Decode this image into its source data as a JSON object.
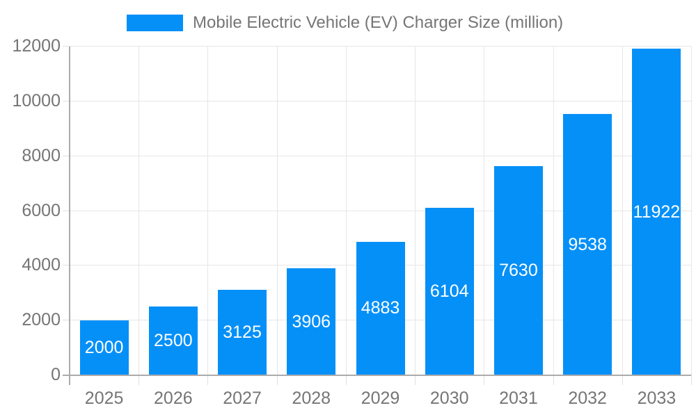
{
  "legend": {
    "label": "Mobile Electric Vehicle (EV) Charger Size (million)"
  },
  "chart_data": {
    "type": "bar",
    "title": "Mobile Electric Vehicle (EV) Charger Size (million)",
    "categories": [
      "2025",
      "2026",
      "2027",
      "2028",
      "2029",
      "2030",
      "2031",
      "2032",
      "2033"
    ],
    "series": [
      {
        "name": "Mobile Electric Vehicle (EV) Charger Size (million)",
        "values": [
          2000,
          2500,
          3125,
          3906,
          4883,
          6104,
          7630,
          9538,
          11922
        ]
      }
    ],
    "value_labels_shown": true,
    "xlabel": "",
    "ylabel": "",
    "ylim": [
      0,
      12000
    ],
    "y_ticks": [
      0,
      2000,
      4000,
      6000,
      8000,
      10000,
      12000
    ],
    "grid": true,
    "legend_position": "top",
    "colors": {
      "bar": "#0590f8",
      "bar_value_label": "#ffffff",
      "axis_line": "#ababab",
      "gridline": "#e6e6e6",
      "tick": "#e0e0e0",
      "tick_label": "#757575",
      "background": "#ffffff"
    }
  }
}
